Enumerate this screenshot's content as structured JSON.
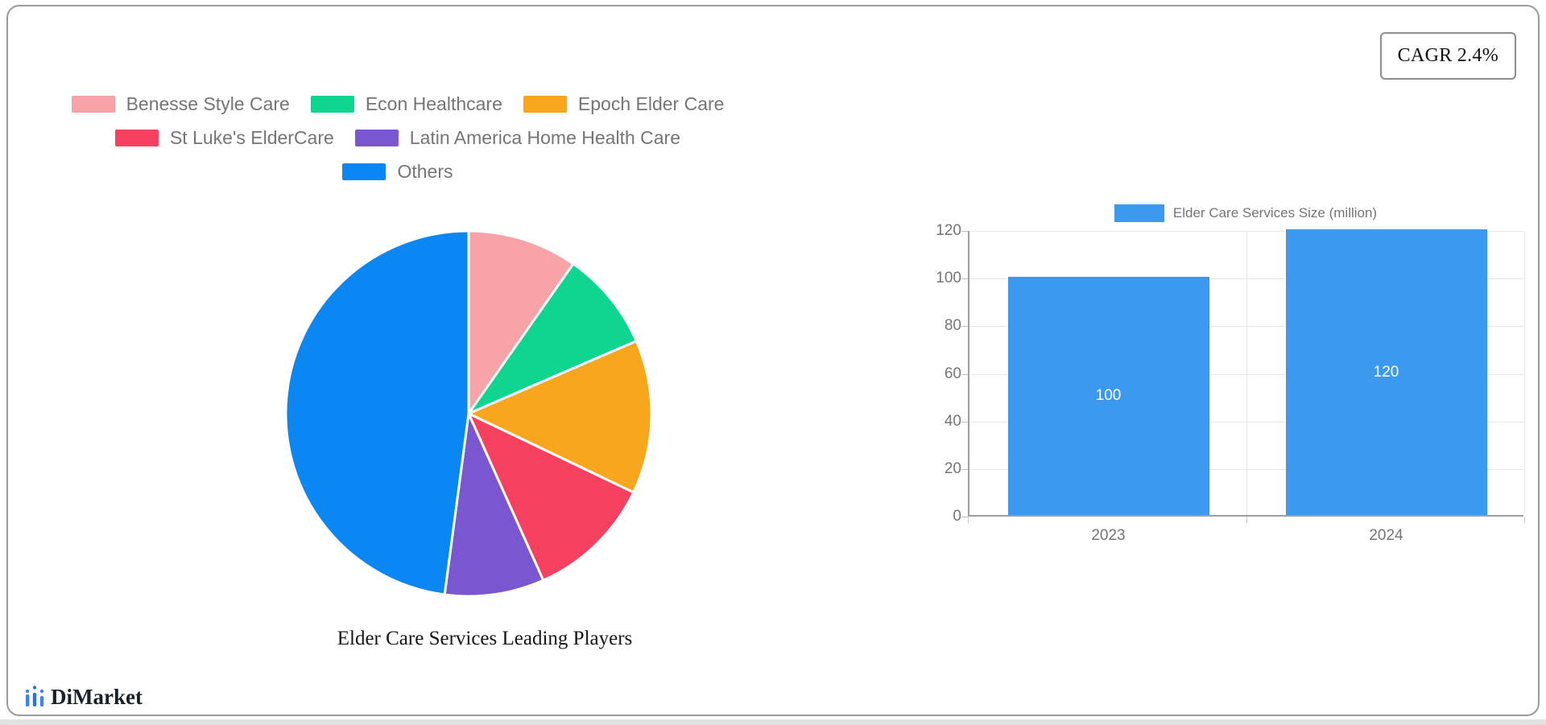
{
  "card": {
    "cagr_label": "CAGR 2.4%"
  },
  "logo": {
    "text": "DiMarket",
    "icon": "bar-chart-logo-icon",
    "icon_color": "#3b82f6",
    "text_color": "#16212b"
  },
  "colors": {
    "axis_label": "#757575",
    "grid": "#e8e8e8",
    "axis": "#9e9e9e",
    "legend_text": "#757575"
  },
  "chart_data": [
    {
      "type": "pie",
      "title": "Elder Care Services Leading Players",
      "labels": [
        "Benesse Style Care",
        "Econ Healthcare",
        "Epoch Elder Care",
        "St Luke's ElderCare",
        "Latin America Home Health Care",
        "Others"
      ],
      "values": [
        9.7,
        8.8,
        13.6,
        11.2,
        8.8,
        47.9
      ],
      "colors": [
        "#f8a3a8",
        "#0fd68f",
        "#f8a61e",
        "#f5415f",
        "#7a57d1",
        "#0b87f3"
      ],
      "legend_rows": [
        [
          0,
          1,
          2
        ],
        [
          3,
          4
        ],
        [
          5
        ]
      ],
      "legend_position": "top",
      "start_angle_deg": 0,
      "direction": "clockwise",
      "slice_border_color": "#ffffff"
    },
    {
      "type": "bar",
      "legend": "Elder Care Services Size (million)",
      "categories": [
        "2023",
        "2024"
      ],
      "values": [
        100,
        120
      ],
      "value_labels": [
        "100",
        "120"
      ],
      "bar_color": "#3b9af0",
      "ylim": [
        0,
        120
      ],
      "yticks": [
        0,
        20,
        40,
        60,
        80,
        100,
        120
      ],
      "grid": true,
      "legend_position": "top"
    }
  ]
}
